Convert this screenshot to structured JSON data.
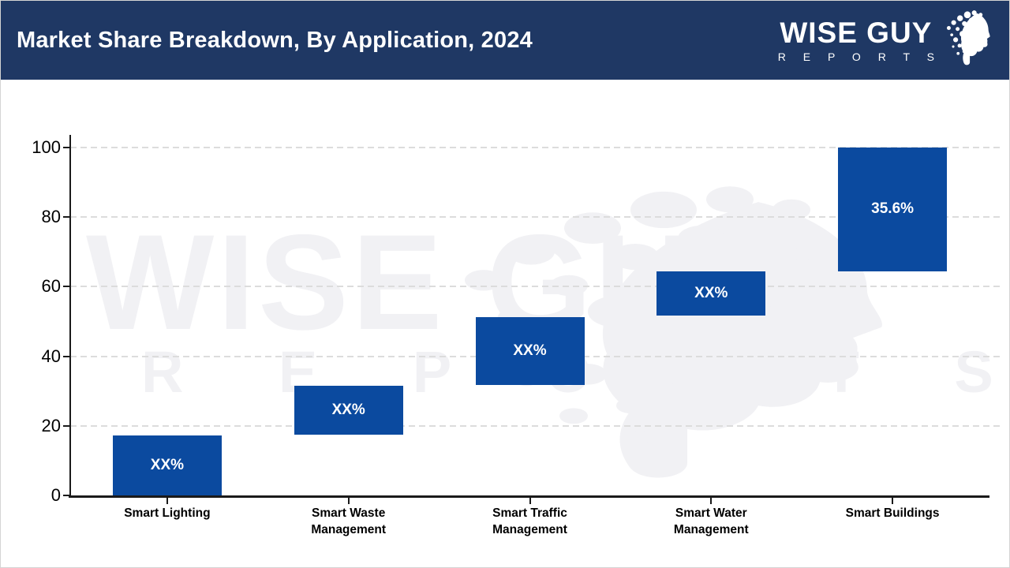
{
  "header": {
    "title": "Market Share Breakdown, By Application, 2024",
    "bg_color": "#1F3864",
    "logo": {
      "line1": "WISE GUY",
      "line2": "R E P O R T S",
      "icon": "dotted-face-profile"
    }
  },
  "watermark": {
    "line1": "WISE GUY",
    "line2": "R E P O R T S",
    "icon": "dotted-face-profile",
    "color": "#f1f1f4"
  },
  "chart_data": {
    "type": "bar",
    "variant": "floating-waterfall",
    "title": "Market Share Breakdown, By Application, 2024",
    "categories": [
      "Smart Lighting",
      "Smart Waste Management",
      "Smart Traffic Management",
      "Smart Water Management",
      "Smart Buildings"
    ],
    "segments": [
      {
        "category": "Smart Lighting",
        "start": 0,
        "end": 17.3,
        "label": "XX%"
      },
      {
        "category": "Smart Waste Management",
        "start": 17.5,
        "end": 31.5,
        "label": "XX%"
      },
      {
        "category": "Smart Traffic Management",
        "start": 31.8,
        "end": 51.3,
        "label": "XX%"
      },
      {
        "category": "Smart Water Management",
        "start": 51.6,
        "end": 64.4,
        "label": "XX%"
      },
      {
        "category": "Smart Buildings",
        "start": 64.4,
        "end": 100,
        "label": "35.6%",
        "value": 35.6
      }
    ],
    "yticks": [
      0,
      20,
      40,
      60,
      80,
      100
    ],
    "ylim": [
      0,
      104
    ],
    "xlabel": "",
    "ylabel": "",
    "bar_color": "#0B4A9F",
    "bar_label_color": "#ffffff",
    "grid": "horizontal-dashed",
    "grid_color": "#dcdcdc",
    "axis_color": "#1a1a1a",
    "legend": "none"
  }
}
